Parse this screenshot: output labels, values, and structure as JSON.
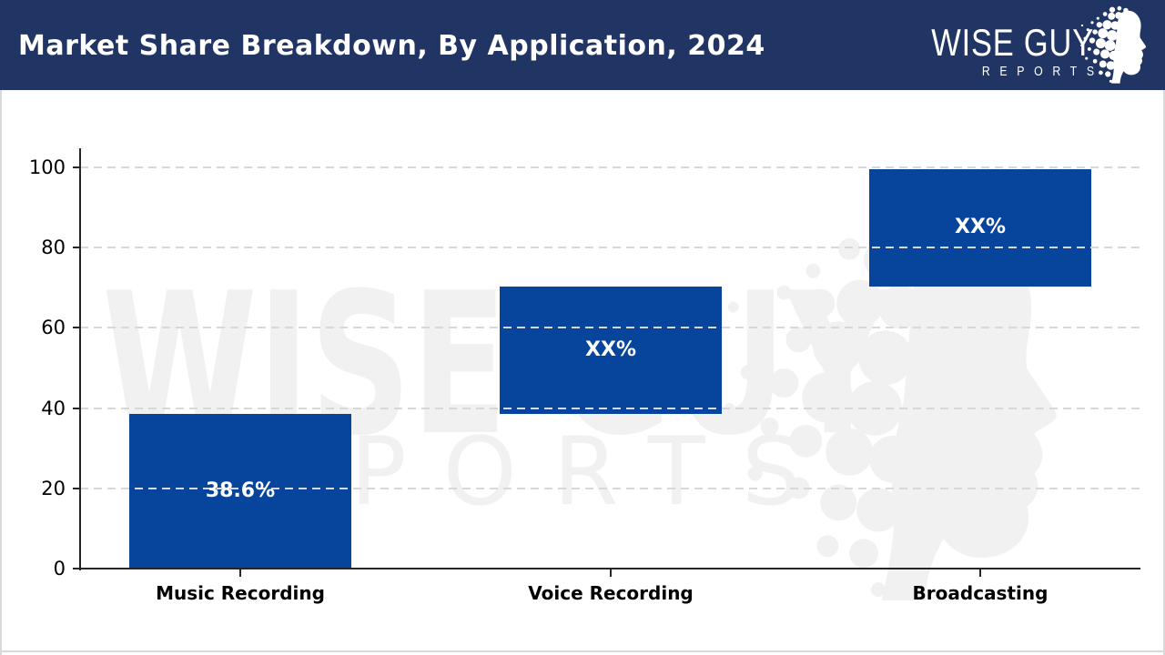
{
  "header": {
    "title": "Market Share Breakdown, By Application, 2024",
    "bg_color": "#213564",
    "logo": {
      "line1": "WISE GUY",
      "line2": "REPORTS"
    }
  },
  "watermark": {
    "line1": "WISE GUY",
    "line2": "REPORTS"
  },
  "chart_data": {
    "type": "bar",
    "subtype": "waterfall-floating-bars",
    "title": "Market Share Breakdown, By Application, 2024",
    "categories": [
      "Music Recording",
      "Voice Recording",
      "Broadcasting"
    ],
    "segments": [
      {
        "category": "Music Recording",
        "start": 0,
        "end": 38.6,
        "label": "38.6%"
      },
      {
        "category": "Voice Recording",
        "start": 38.6,
        "end": 70.3,
        "label": "XX%"
      },
      {
        "category": "Broadcasting",
        "start": 70.3,
        "end": 99.6,
        "label": "XX%"
      }
    ],
    "xlabel": "",
    "ylabel": "",
    "ylim": [
      0,
      100
    ],
    "yticks": [
      0,
      20,
      40,
      60,
      80,
      100
    ],
    "grid": "horizontal-dashed",
    "legend": null,
    "bar_color": "#07449c",
    "bar_label_color": "#ffffff",
    "axis_color": "#262626",
    "grid_color": "#d8d8d8"
  }
}
